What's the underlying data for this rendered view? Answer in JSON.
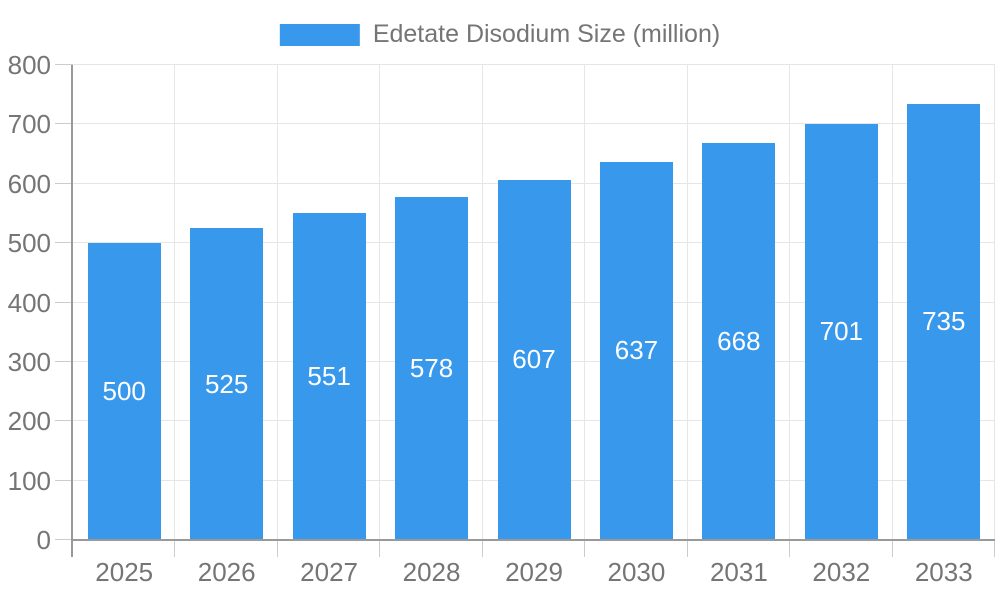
{
  "chart_data": {
    "type": "bar",
    "legend": "Edetate Disodium Size (million)",
    "categories": [
      "2025",
      "2026",
      "2027",
      "2028",
      "2029",
      "2030",
      "2031",
      "2032",
      "2033"
    ],
    "values": [
      500,
      525,
      551,
      578,
      607,
      637,
      668,
      701,
      735
    ],
    "title": "",
    "xlabel": "",
    "ylabel": "",
    "ylim": [
      0,
      800
    ],
    "yticks": [
      0,
      100,
      200,
      300,
      400,
      500,
      600,
      700,
      800
    ],
    "grid": true,
    "legend_position": "top-center",
    "bar_value_labels_inside": true,
    "colors": {
      "bar": "#3898EC",
      "bar_label": "#ffffff",
      "axis": "#999999",
      "tick": "#cccccc",
      "gridline": "#e6e6e6",
      "text": "#757575",
      "background": "#ffffff"
    }
  }
}
